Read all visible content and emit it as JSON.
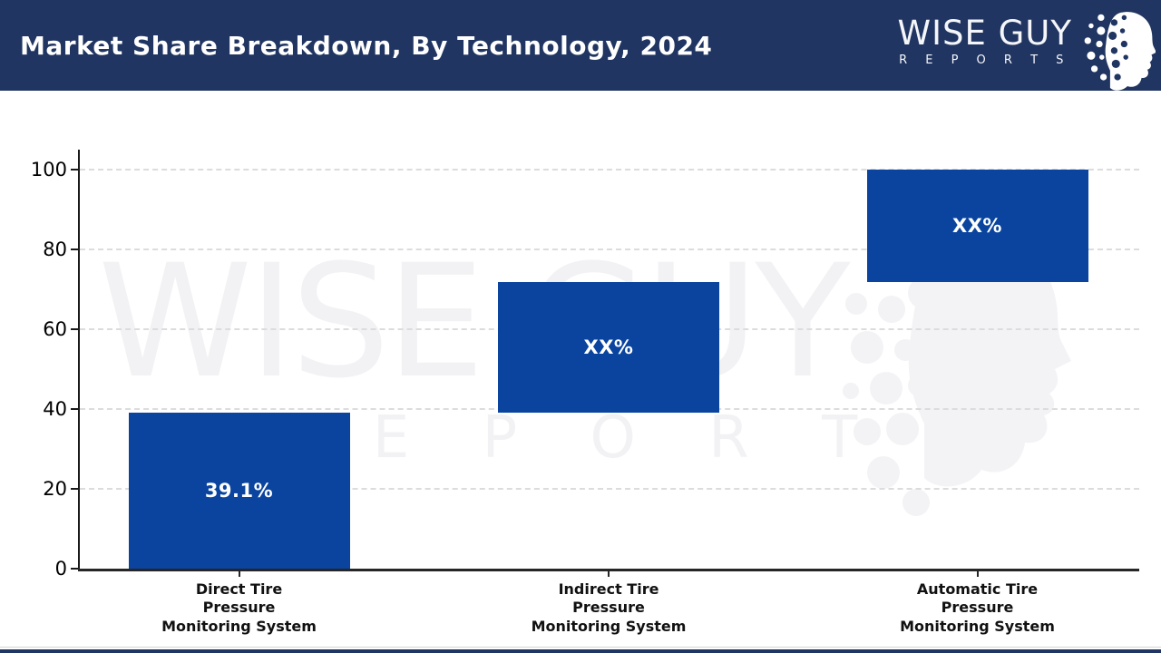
{
  "header": {
    "title": "Market Share Breakdown, By Technology, 2024",
    "logo_line1": "WISE GUY",
    "logo_line2": "R E P O R T S",
    "bg_color": "#203561"
  },
  "watermark": {
    "line1": "WISE GUY",
    "line2": "R E P O R T S",
    "color": "#f2f2f5"
  },
  "chart_data": {
    "type": "bar",
    "subtype": "floating-waterfall",
    "title": "Market Share Breakdown, By Technology, 2024",
    "categories": [
      "Direct Tire\nPressure\nMonitoring System",
      "Indirect Tire\nPressure\nMonitoring System",
      "Automatic Tire\nPressure\nMonitoring System"
    ],
    "segments": [
      {
        "start": 0,
        "end": 39.1,
        "label": "39.1%"
      },
      {
        "start": 39.1,
        "end": 71.7,
        "label": "XX%"
      },
      {
        "start": 71.7,
        "end": 100,
        "label": "XX%"
      }
    ],
    "ylim": [
      0,
      100
    ],
    "yticks": [
      0,
      20,
      40,
      60,
      80,
      100
    ],
    "grid": {
      "horizontal": true,
      "style": "dashed",
      "color": "#dcdcdc"
    },
    "legend": "none",
    "bar_color": "#0a449e",
    "bar_label_color": "#ffffff",
    "axis_color": "#1a1a1a"
  },
  "colors": {
    "header_bg": "#203561",
    "footer_bg": "#203561",
    "bar_blue": "#0a449e",
    "grid_gray": "#dcdcdc",
    "watermark_gray": "#f2f2f5"
  }
}
